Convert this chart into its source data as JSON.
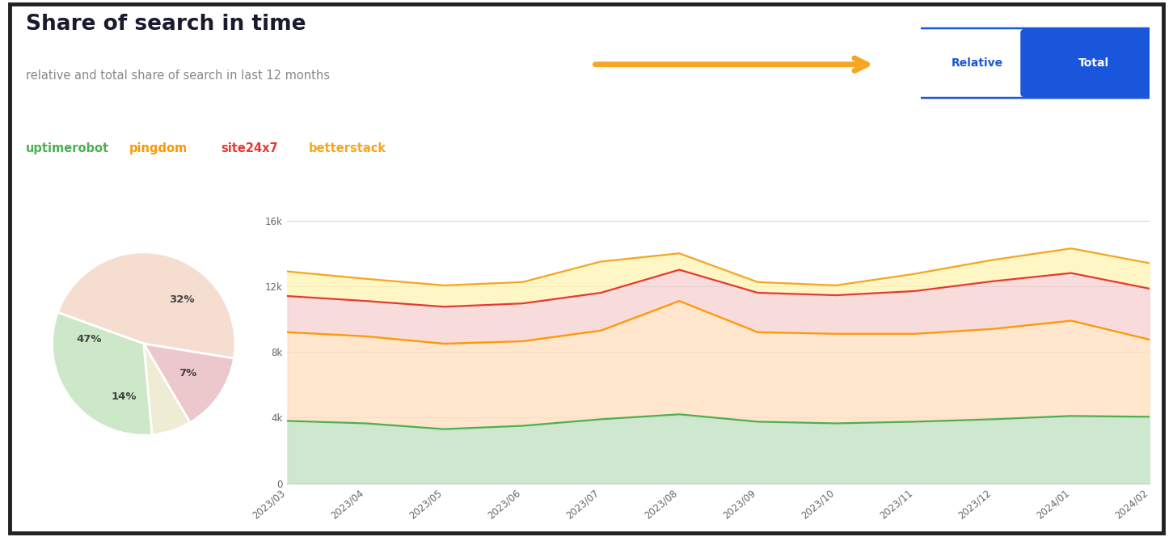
{
  "title": "Share of search in time",
  "subtitle": "relative and total share of search in last 12 months",
  "bg_color": "#ffffff",
  "border_color": "#2a2a2a",
  "legend_labels": [
    "uptimerobot",
    "pingdom",
    "site24x7",
    "betterstack"
  ],
  "legend_colors": [
    "#4caf50",
    "#ff9800",
    "#e53935",
    "#f5a623"
  ],
  "pie_values": [
    47,
    14,
    7,
    32
  ],
  "pie_colors": [
    "#f5ddd0",
    "#f0d0d8",
    "#e8eed8",
    "#d4e8d0"
  ],
  "pie_wedge_colors": [
    "#f0c8a8",
    "#e8b8c0",
    "#d8e0b0",
    "#b8d8b8"
  ],
  "pie_labels_text": [
    "47%",
    "14%",
    "7%",
    "32%"
  ],
  "x_labels": [
    "2023/03",
    "2023/04",
    "2023/05",
    "2023/06",
    "2023/07",
    "2023/08",
    "2023/09",
    "2023/10",
    "2023/11",
    "2023/12",
    "2024/01",
    "2024/02"
  ],
  "y_ticks": [
    0,
    4000,
    8000,
    12000,
    16000
  ],
  "y_labels": [
    "0",
    "4k",
    "8k",
    "12k",
    "16k"
  ],
  "uptimerobot": [
    3800,
    3650,
    3300,
    3500,
    3900,
    4200,
    3750,
    3650,
    3750,
    3900,
    4100,
    4050
  ],
  "pingdom": [
    9200,
    8950,
    8500,
    8650,
    9300,
    11100,
    9200,
    9100,
    9100,
    9400,
    9900,
    8750
  ],
  "site24x7": [
    11400,
    11100,
    10750,
    10950,
    11600,
    13000,
    11600,
    11450,
    11700,
    12300,
    12800,
    11850
  ],
  "betterstack": [
    12900,
    12450,
    12050,
    12250,
    13500,
    14000,
    12250,
    12050,
    12750,
    13600,
    14300,
    13400
  ],
  "fill_color_uptimerobot": "#c8e6c9",
  "fill_color_pingdom": "#ffe0c0",
  "fill_color_site24x7": "#f5cac8",
  "fill_color_betterstack": "#fef4b0",
  "line_color_uptimerobot": "#4caf50",
  "line_color_pingdom": "#ff9800",
  "line_color_site24x7": "#e53935",
  "line_color_betterstack": "#f5a623",
  "arrow_color": "#f5a623",
  "btn_outline_color": "#1a56db",
  "btn_fill_color": "#1a56db",
  "btn_text_color_rel": "#1a56db",
  "btn_text_color_tot": "#ffffff"
}
